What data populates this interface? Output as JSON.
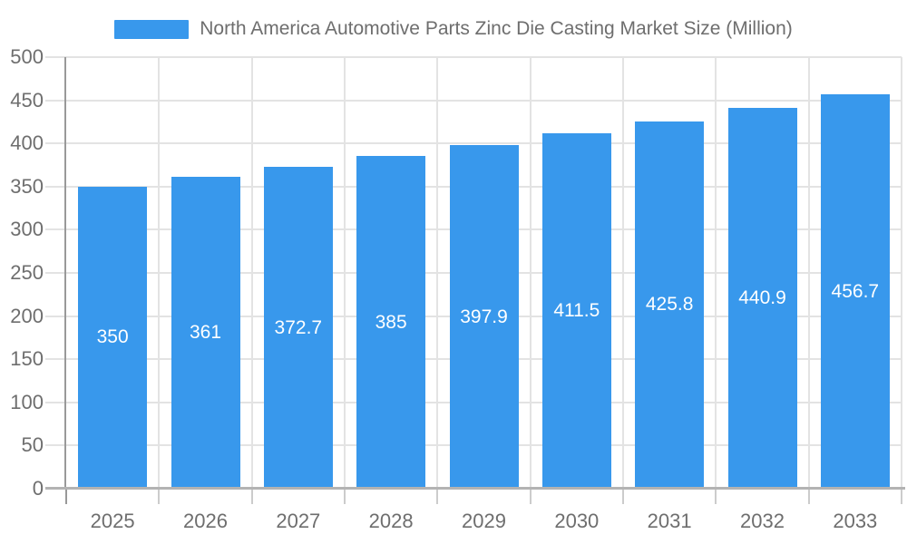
{
  "chart_data": {
    "type": "bar",
    "title": "North America Automotive Parts Zinc Die Casting Market Size (Million)",
    "legend_position": "top",
    "categories": [
      "2025",
      "2026",
      "2027",
      "2028",
      "2029",
      "2030",
      "2031",
      "2032",
      "2033"
    ],
    "values": [
      350,
      361,
      372.7,
      385,
      397.9,
      411.5,
      425.8,
      440.9,
      456.7
    ],
    "value_labels": [
      "350",
      "361",
      "372.7",
      "385",
      "397.9",
      "411.5",
      "425.8",
      "440.9",
      "456.7"
    ],
    "xlabel": "",
    "ylabel": "",
    "ylim": [
      0,
      500
    ],
    "ytick_step": 50,
    "ytick_labels": [
      "0",
      "50",
      "100",
      "150",
      "200",
      "250",
      "300",
      "350",
      "400",
      "450",
      "500"
    ],
    "grid": true,
    "colors": {
      "bar": "#3898ec",
      "grid": "#e3e3e3",
      "axis_text": "#6e6e6e",
      "value_label_text": "#ffffff",
      "y_axis_line": "#999999",
      "x_axis_line": "#b3b3b3",
      "boundary_tick": "#cccccc",
      "background": "#ffffff"
    }
  }
}
